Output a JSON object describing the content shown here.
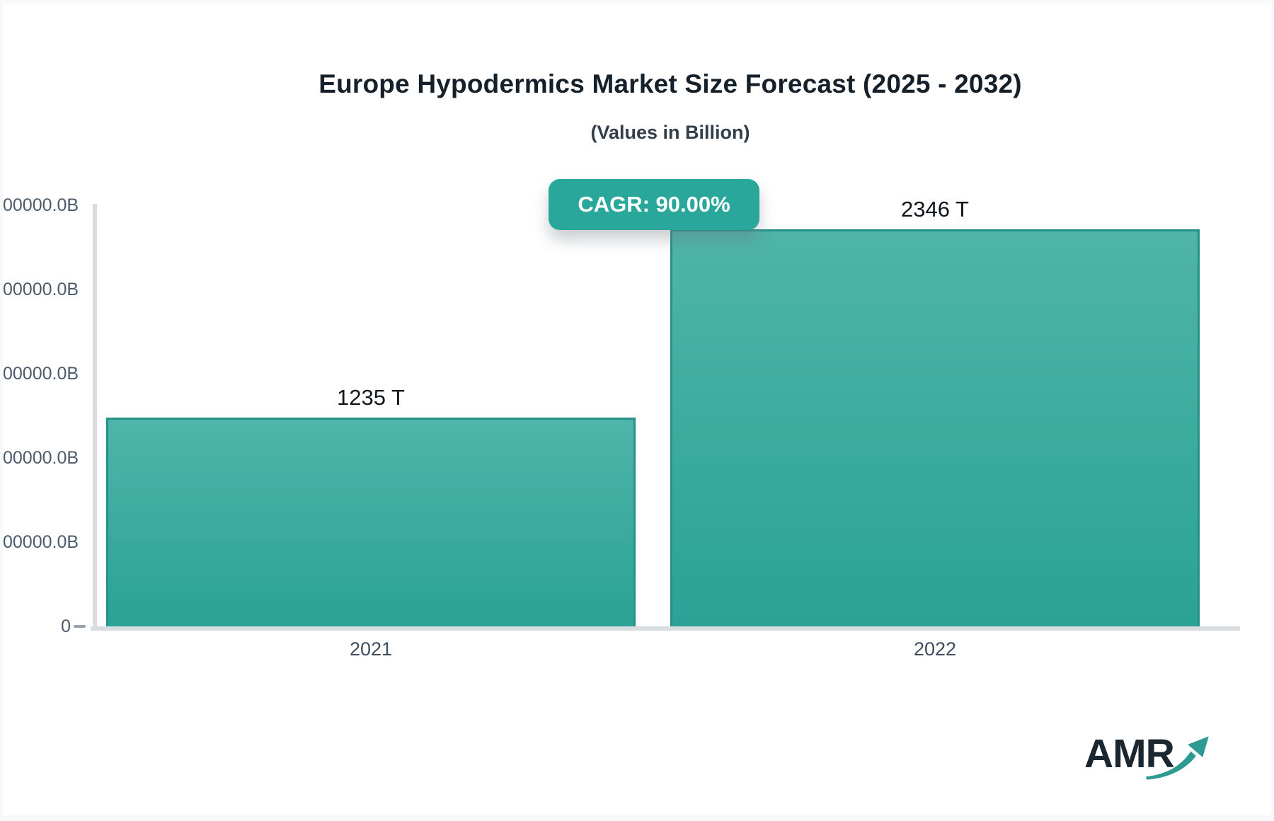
{
  "title": "Europe Hypodermics Market Size Forecast (2025 - 2032)",
  "subtitle": "(Values in Billion)",
  "badge": {
    "label": "CAGR: 90.00%"
  },
  "logo": {
    "text": "AMR",
    "arrow_icon": "growth-arrow-icon"
  },
  "colors": {
    "accent_teal": "#29a79b",
    "bar_gradient_top": "#50b4aa",
    "bar_gradient_bottom": "#2aa295",
    "bar_border": "#259188",
    "axis_line": "#d8dbe0",
    "tick_text": "#4c5a69",
    "title_text": "#15202b",
    "logo_text": "#1a2630"
  },
  "chart_data": {
    "type": "bar",
    "categories": [
      "2021",
      "2022"
    ],
    "values": [
      1235,
      2346
    ],
    "unit": "T",
    "bar_labels": [
      "1235 T",
      "2346 T"
    ],
    "title": "Europe Hypodermics Market Size Forecast (2025 - 2032)",
    "subtitle": "(Values in Billion)",
    "cagr_percent": "90.00%",
    "xlabel": "",
    "ylabel": "",
    "ylim": [
      0,
      2635
    ],
    "grid": false,
    "legend": false,
    "y_tick_labels": [
      "00000.0B",
      "00000.0B",
      "00000.0B",
      "00000.0B",
      "00000.0B",
      "0"
    ],
    "y_tick_labels_note": "upper five labels are truncated at the left image edge; values step by 500000.0B from 0"
  }
}
